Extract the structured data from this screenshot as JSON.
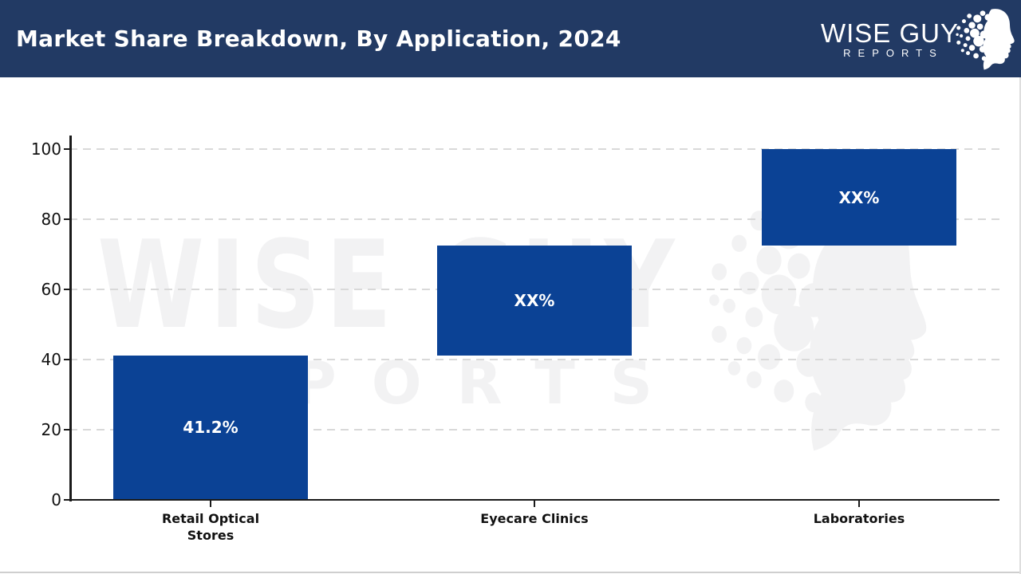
{
  "header": {
    "title": "Market Share Breakdown, By Application, 2024",
    "logo": {
      "line1": "WISE GUY",
      "line2": "REPORTS"
    }
  },
  "watermark": {
    "line1": "WISE GUY",
    "line2": "REPORTS"
  },
  "colors": {
    "header_bg": "#223a64",
    "bar": "#0b4295",
    "bar_label": "#ffffff",
    "grid": "#d9d9d9",
    "axis": "#1a1a1a",
    "watermark": "#f2f2f3"
  },
  "chart_data": {
    "type": "bar",
    "subtype": "floating-cumulative-percentage-bars",
    "title": "Market Share Breakdown, By Application, 2024",
    "categories": [
      "Retail Optical Stores",
      "Eyecare Clinics",
      "Laboratories"
    ],
    "segments": [
      {
        "category": "Retail Optical Stores",
        "tick_label": "Retail Optical\nStores",
        "start": 0,
        "end": 41.2,
        "label": "41.2%"
      },
      {
        "category": "Eyecare Clinics",
        "tick_label": "Eyecare Clinics",
        "start": 41.2,
        "end": 72.4,
        "label": "XX%"
      },
      {
        "category": "Laboratories",
        "tick_label": "Laboratories",
        "start": 72.4,
        "end": 100,
        "label": "XX%"
      }
    ],
    "xlabel": "",
    "ylabel": "",
    "ylim": [
      0,
      100
    ],
    "yticks": [
      0,
      20,
      40,
      60,
      80,
      100
    ],
    "grid": "horizontal-dashed",
    "legend": "none",
    "bar_value_position": "center"
  }
}
